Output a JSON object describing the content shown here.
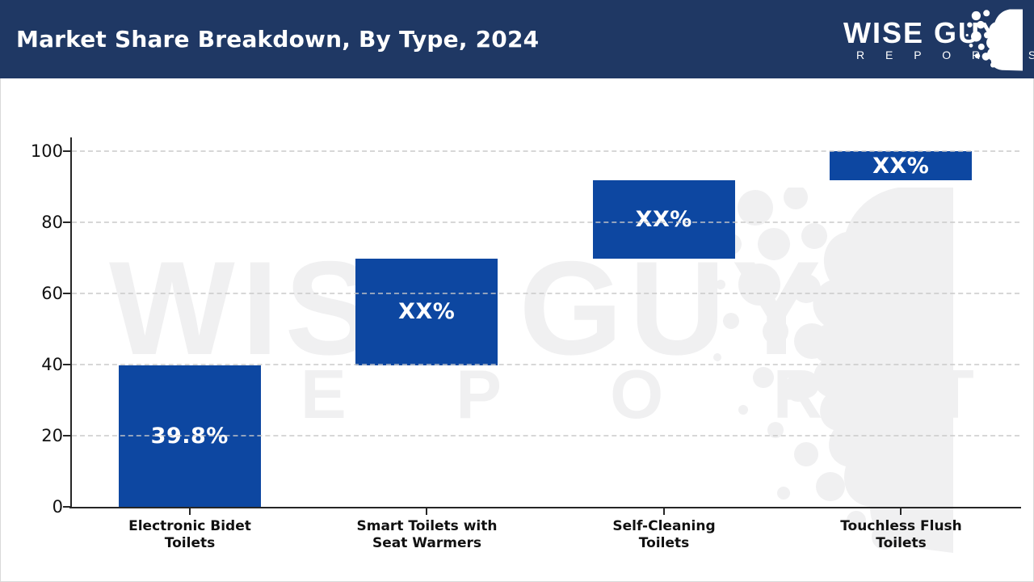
{
  "header": {
    "title": "Market Share Breakdown, By Type, 2024",
    "bg_color": "#1f3864",
    "logo": {
      "line1": "WISE GUY",
      "line2": "R E P O R T S",
      "face_icon": "dotted-profile-face"
    }
  },
  "watermark": {
    "line1": "WISE GUY",
    "line2": "R E P O R T S",
    "face_icon": "dotted-profile-face",
    "color": "#f0f0f1"
  },
  "chart_data": {
    "type": "bar",
    "variant": "waterfall",
    "title": "Market Share Breakdown, By Type, 2024",
    "categories": [
      [
        "Electronic Bidet",
        "Toilets"
      ],
      [
        "Smart Toilets with",
        "Seat Warmers"
      ],
      [
        "Self-Cleaning",
        "Toilets"
      ],
      [
        "Touchless Flush",
        "Toilets"
      ]
    ],
    "segments": [
      {
        "start": 0,
        "end": 39.8,
        "label": "39.8%"
      },
      {
        "start": 39.8,
        "end": 69.8,
        "label": "XX%"
      },
      {
        "start": 69.8,
        "end": 91.8,
        "label": "XX%"
      },
      {
        "start": 91.8,
        "end": 100,
        "label": "XX%"
      }
    ],
    "y_ticks": [
      0,
      20,
      40,
      60,
      80,
      100
    ],
    "ylim": [
      0,
      103.8
    ],
    "xlabel": "",
    "ylabel": "",
    "bar_color": "#0d47a1",
    "grid": {
      "show": true,
      "style": "dashed",
      "color": "rgba(200,200,200,0.72)",
      "above_bars": true
    },
    "legend": {
      "show": false
    }
  }
}
